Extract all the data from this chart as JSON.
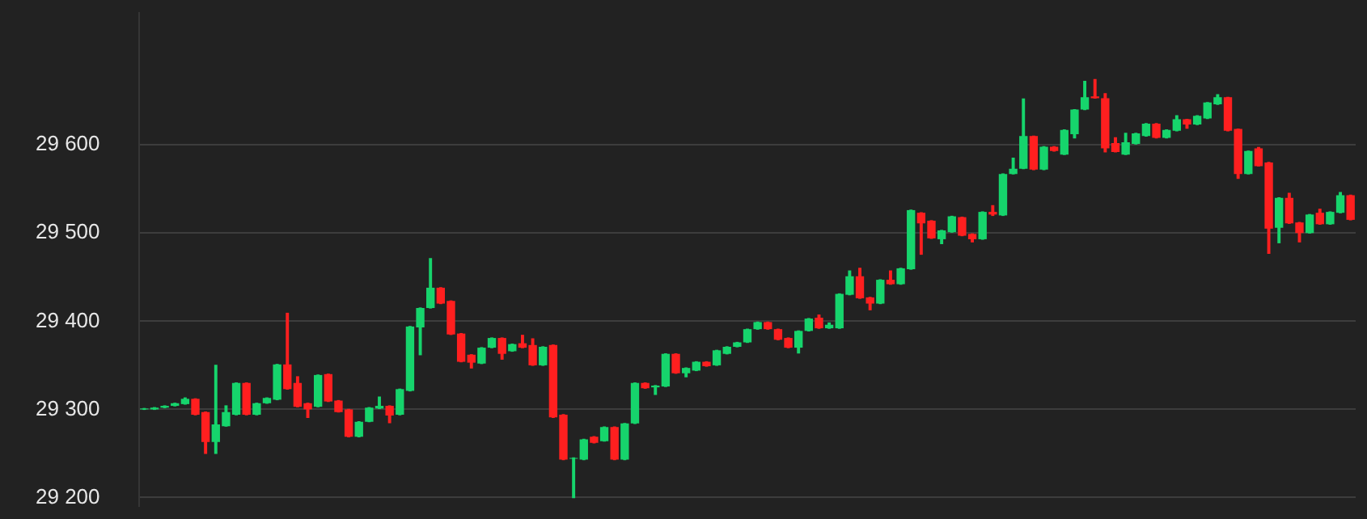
{
  "chart_data": {
    "type": "candlestick",
    "categories": [
      null,
      null,
      null,
      null,
      null,
      null,
      null,
      null,
      null,
      null,
      null,
      null,
      null,
      null,
      null,
      null,
      null,
      null,
      null,
      null,
      null,
      null,
      null,
      null,
      null,
      null,
      null,
      null,
      null,
      null,
      null,
      null,
      null,
      null,
      null,
      null,
      null,
      null,
      null,
      null,
      null,
      null,
      null,
      null,
      null,
      null,
      null,
      null,
      null,
      null,
      null,
      null,
      null,
      null,
      null,
      null,
      null,
      null,
      null,
      null,
      null,
      null,
      null,
      null,
      null,
      null,
      null,
      null,
      null,
      null,
      null,
      null,
      null,
      null,
      null,
      null,
      null,
      null,
      null,
      null,
      null,
      null,
      null,
      null,
      null,
      null,
      null,
      null,
      null,
      null,
      null,
      null,
      null,
      null,
      null,
      null,
      null,
      null,
      null,
      null,
      null,
      null,
      null,
      null,
      null,
      null,
      null,
      null,
      null,
      null,
      null,
      null,
      null,
      null,
      null,
      null,
      null,
      null,
      null
    ],
    "ohlc": [
      [
        29300,
        29301,
        29300,
        29301
      ],
      [
        29300,
        29302,
        29300,
        29302
      ],
      [
        29302,
        29304,
        29302,
        29304
      ],
      [
        29304,
        29307,
        29304,
        29307
      ],
      [
        29306,
        29313,
        29306,
        29312
      ],
      [
        29312,
        29312,
        29294,
        29294
      ],
      [
        29297,
        29297,
        29250,
        29263
      ],
      [
        29263,
        29350,
        29250,
        29283
      ],
      [
        29281,
        29304,
        29281,
        29297
      ],
      [
        29294,
        29330,
        29294,
        29330
      ],
      [
        29330,
        29330,
        29294,
        29294
      ],
      [
        29294,
        29307,
        29294,
        29307
      ],
      [
        29307,
        29313,
        29307,
        29313
      ],
      [
        29311,
        29351,
        29311,
        29351
      ],
      [
        29351,
        29409,
        29323,
        29323
      ],
      [
        29330,
        29337,
        29303,
        29303
      ],
      [
        29307,
        29307,
        29291,
        29300
      ],
      [
        29303,
        29339,
        29303,
        29339
      ],
      [
        29340,
        29340,
        29309,
        29309
      ],
      [
        29310,
        29310,
        29297,
        29297
      ],
      [
        29300,
        29300,
        29269,
        29269
      ],
      [
        29269,
        29286,
        29269,
        29286
      ],
      [
        29286,
        29302,
        29286,
        29302
      ],
      [
        29301,
        29314,
        29301,
        29304
      ],
      [
        29304,
        29304,
        29285,
        29293
      ],
      [
        29294,
        29323,
        29294,
        29323
      ],
      [
        29321,
        29394,
        29321,
        29394
      ],
      [
        29393,
        29415,
        29362,
        29415
      ],
      [
        29415,
        29471,
        29415,
        29438
      ],
      [
        29438,
        29438,
        29420,
        29420
      ],
      [
        29423,
        29423,
        29385,
        29385
      ],
      [
        29386,
        29386,
        29354,
        29354
      ],
      [
        29362,
        29362,
        29347,
        29353
      ],
      [
        29352,
        29370,
        29352,
        29370
      ],
      [
        29370,
        29381,
        29370,
        29381
      ],
      [
        29381,
        29381,
        29357,
        29363
      ],
      [
        29366,
        29374,
        29366,
        29374
      ],
      [
        29375,
        29384,
        29370,
        29370
      ],
      [
        29373,
        29380,
        29350,
        29350
      ],
      [
        29350,
        29371,
        29350,
        29371
      ],
      [
        29373,
        29373,
        29291,
        29291
      ],
      [
        29294,
        29294,
        29243,
        29243
      ],
      [
        29244,
        29245,
        29200,
        29245
      ],
      [
        29243,
        29266,
        29243,
        29266
      ],
      [
        29269,
        29269,
        29262,
        29262
      ],
      [
        29264,
        29280,
        29264,
        29280
      ],
      [
        29280,
        29280,
        29243,
        29243
      ],
      [
        29243,
        29284,
        29243,
        29284
      ],
      [
        29284,
        29330,
        29284,
        29330
      ],
      [
        29330,
        29330,
        29324,
        29324
      ],
      [
        29325,
        29327,
        29317,
        29327
      ],
      [
        29326,
        29363,
        29326,
        29363
      ],
      [
        29363,
        29363,
        29341,
        29341
      ],
      [
        29341,
        29347,
        29337,
        29347
      ],
      [
        29344,
        29354,
        29344,
        29354
      ],
      [
        29354,
        29354,
        29349,
        29349
      ],
      [
        29350,
        29367,
        29350,
        29367
      ],
      [
        29363,
        29371,
        29363,
        29371
      ],
      [
        29371,
        29376,
        29371,
        29376
      ],
      [
        29376,
        29391,
        29376,
        29391
      ],
      [
        29391,
        29399,
        29391,
        29399
      ],
      [
        29399,
        29399,
        29391,
        29391
      ],
      [
        29391,
        29391,
        29379,
        29379
      ],
      [
        29381,
        29381,
        29370,
        29370
      ],
      [
        29370,
        29389,
        29364,
        29389
      ],
      [
        29389,
        29403,
        29389,
        29403
      ],
      [
        29404,
        29407,
        29392,
        29392
      ],
      [
        29392,
        29398,
        29392,
        29396
      ],
      [
        29392,
        29431,
        29392,
        29431
      ],
      [
        29430,
        29457,
        29430,
        29451
      ],
      [
        29451,
        29460,
        29426,
        29426
      ],
      [
        29427,
        29427,
        29413,
        29420
      ],
      [
        29420,
        29447,
        29420,
        29447
      ],
      [
        29447,
        29457,
        29442,
        29442
      ],
      [
        29442,
        29460,
        29442,
        29460
      ],
      [
        29459,
        29526,
        29459,
        29526
      ],
      [
        29523,
        29523,
        29476,
        29511
      ],
      [
        29514,
        29514,
        29494,
        29494
      ],
      [
        29493,
        29503,
        29488,
        29503
      ],
      [
        29501,
        29519,
        29501,
        29519
      ],
      [
        29518,
        29518,
        29497,
        29497
      ],
      [
        29499,
        29499,
        29490,
        29493
      ],
      [
        29493,
        29524,
        29493,
        29524
      ],
      [
        29524,
        29531,
        29520,
        29521
      ],
      [
        29520,
        29567,
        29520,
        29567
      ],
      [
        29567,
        29585,
        29567,
        29573
      ],
      [
        29573,
        29652,
        29573,
        29610
      ],
      [
        29610,
        29610,
        29572,
        29572
      ],
      [
        29572,
        29598,
        29572,
        29598
      ],
      [
        29598,
        29598,
        29593,
        29593
      ],
      [
        29589,
        29617,
        29589,
        29617
      ],
      [
        29612,
        29640,
        29608,
        29640
      ],
      [
        29640,
        29672,
        29640,
        29654
      ],
      [
        29655,
        29674,
        29653,
        29653
      ],
      [
        29653,
        29658,
        29592,
        29596
      ],
      [
        29602,
        29608,
        29592,
        29592
      ],
      [
        29589,
        29613,
        29589,
        29603
      ],
      [
        29601,
        29613,
        29601,
        29613
      ],
      [
        29610,
        29624,
        29610,
        29624
      ],
      [
        29624,
        29624,
        29608,
        29608
      ],
      [
        29608,
        29617,
        29608,
        29617
      ],
      [
        29616,
        29633,
        29616,
        29629
      ],
      [
        29629,
        29629,
        29619,
        29623
      ],
      [
        29623,
        29633,
        29623,
        29633
      ],
      [
        29630,
        29648,
        29630,
        29648
      ],
      [
        29646,
        29657,
        29646,
        29654
      ],
      [
        29654,
        29654,
        29616,
        29616
      ],
      [
        29618,
        29618,
        29562,
        29567
      ],
      [
        29567,
        29593,
        29567,
        29593
      ],
      [
        29596,
        29597,
        29576,
        29576
      ],
      [
        29580,
        29580,
        29477,
        29505
      ],
      [
        29506,
        29540,
        29489,
        29540
      ],
      [
        29540,
        29545,
        29511,
        29511
      ],
      [
        29512,
        29512,
        29490,
        29500
      ],
      [
        29500,
        29521,
        29500,
        29521
      ],
      [
        29523,
        29527,
        29510,
        29510
      ],
      [
        29510,
        29524,
        29510,
        29524
      ],
      [
        29523,
        29546,
        29523,
        29543
      ],
      [
        29543,
        29543,
        29515,
        29515
      ]
    ],
    "colors": [
      "#16d46c",
      "#16d46c",
      "#16d46c",
      "#16d46c",
      "#16d46c",
      "#ff1f1f",
      "#ff1f1f",
      "#16d46c",
      "#16d46c",
      "#16d46c",
      "#ff1f1f",
      "#16d46c",
      "#16d46c",
      "#16d46c",
      "#ff1f1f",
      "#ff1f1f",
      "#ff1f1f",
      "#16d46c",
      "#ff1f1f",
      "#ff1f1f",
      "#ff1f1f",
      "#16d46c",
      "#16d46c",
      "#16d46c",
      "#ff1f1f",
      "#16d46c",
      "#16d46c",
      "#16d46c",
      "#16d46c",
      "#ff1f1f",
      "#ff1f1f",
      "#ff1f1f",
      "#ff1f1f",
      "#16d46c",
      "#16d46c",
      "#ff1f1f",
      "#16d46c",
      "#ff1f1f",
      "#ff1f1f",
      "#16d46c",
      "#ff1f1f",
      "#ff1f1f",
      "#16d46c",
      "#16d46c",
      "#ff1f1f",
      "#16d46c",
      "#ff1f1f",
      "#16d46c",
      "#16d46c",
      "#ff1f1f",
      "#16d46c",
      "#16d46c",
      "#ff1f1f",
      "#16d46c",
      "#16d46c",
      "#ff1f1f",
      "#16d46c",
      "#16d46c",
      "#16d46c",
      "#16d46c",
      "#16d46c",
      "#ff1f1f",
      "#ff1f1f",
      "#ff1f1f",
      "#16d46c",
      "#16d46c",
      "#ff1f1f",
      "#16d46c",
      "#16d46c",
      "#16d46c",
      "#ff1f1f",
      "#ff1f1f",
      "#16d46c",
      "#ff1f1f",
      "#16d46c",
      "#16d46c",
      "#ff1f1f",
      "#ff1f1f",
      "#16d46c",
      "#16d46c",
      "#ff1f1f",
      "#ff1f1f",
      "#16d46c",
      "#ff1f1f",
      "#16d46c",
      "#16d46c",
      "#16d46c",
      "#ff1f1f",
      "#16d46c",
      "#ff1f1f",
      "#16d46c",
      "#16d46c",
      "#16d46c",
      "#ff1f1f",
      "#ff1f1f",
      "#ff1f1f",
      "#16d46c",
      "#16d46c",
      "#16d46c",
      "#ff1f1f",
      "#16d46c",
      "#16d46c",
      "#ff1f1f",
      "#16d46c",
      "#16d46c",
      "#16d46c",
      "#ff1f1f",
      "#ff1f1f",
      "#16d46c",
      "#ff1f1f",
      "#ff1f1f",
      "#16d46c",
      "#ff1f1f",
      "#ff1f1f",
      "#16d46c",
      "#ff1f1f",
      "#16d46c",
      "#16d46c",
      "#ff1f1f"
    ],
    "ylim": [
      29190,
      29750
    ],
    "yticks": [
      {
        "value": 29200,
        "label": "29 200"
      },
      {
        "value": 29300,
        "label": "29 300"
      },
      {
        "value": 29400,
        "label": "29 400"
      },
      {
        "value": 29500,
        "label": "29 500"
      },
      {
        "value": 29600,
        "label": "29 600"
      }
    ],
    "grid": "y",
    "tick_labels": "y",
    "legend": false
  }
}
